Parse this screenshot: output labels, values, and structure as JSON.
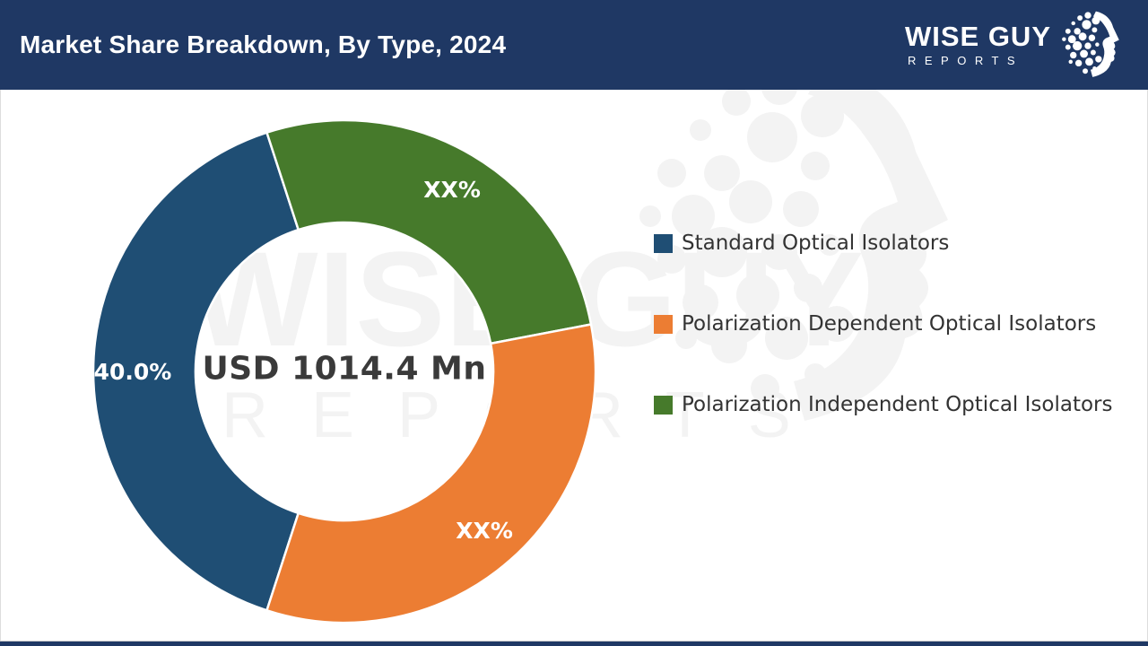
{
  "header": {
    "title": "Market Share Breakdown, By Type, 2024",
    "logo": {
      "line1": "WISE GUY",
      "line2": "REPORTS"
    }
  },
  "watermark": {
    "line1": "WISE GUY",
    "line2": "REPORTS"
  },
  "chart_data": {
    "type": "pie",
    "title": "Market Share Breakdown, By Type, 2024",
    "donut": true,
    "center_text": "USD 1014.4 Mn",
    "series": [
      {
        "name": "Standard Optical Isolators",
        "value": 40.0,
        "display_label": "40.0%",
        "color": "#1F4E74"
      },
      {
        "name": "Polarization Dependent Optical Isolators",
        "value": 33.0,
        "display_label": "XX%",
        "color": "#EC7D33"
      },
      {
        "name": "Polarization Independent Optical Isolators",
        "value": 27.0,
        "display_label": "XX%",
        "color": "#467A2B"
      }
    ],
    "layout": {
      "legend_position": "right",
      "start_angle_deg": 198,
      "draw_order": [
        0,
        2,
        1
      ],
      "inner_radius_ratio": 0.593,
      "slice_border_color": "#ffffff",
      "label_color": "#ffffff"
    }
  },
  "colors": {
    "header_bg": "#1F3864",
    "footer_bg": "#1F3864",
    "watermark": "#F3F3F3",
    "legend_text": "#333333",
    "center_text": "#3A3A3A"
  }
}
